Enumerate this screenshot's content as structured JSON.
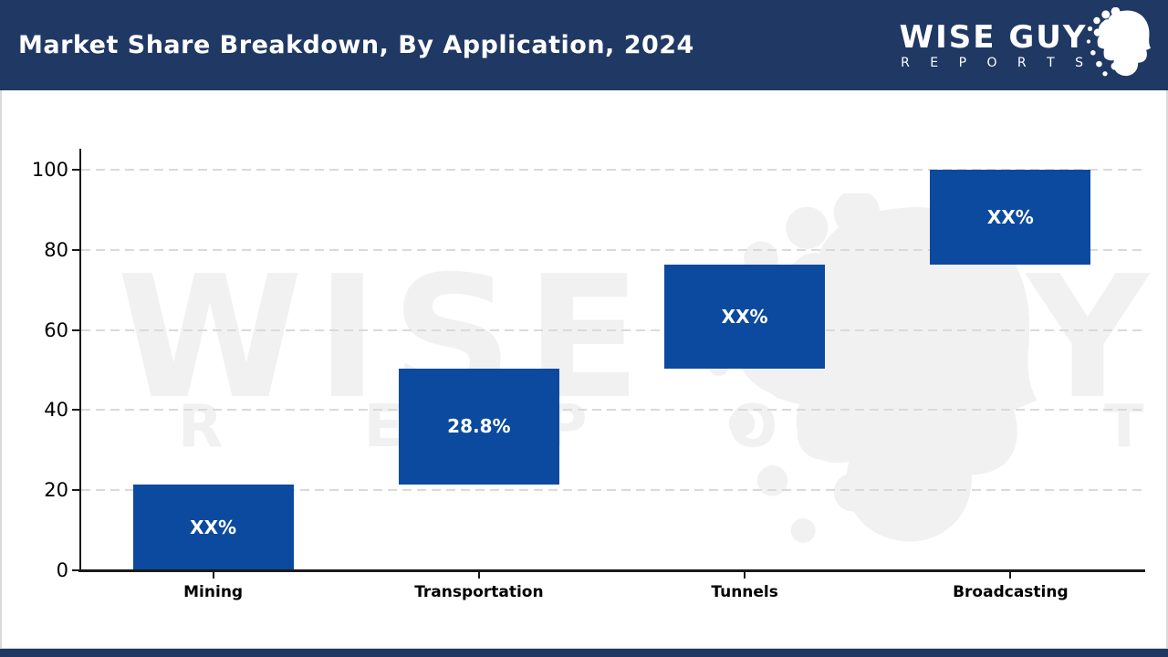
{
  "header": {
    "title": "Market Share Breakdown, By Application, 2024",
    "brand": {
      "line1": "WISE GUY",
      "line2": "R E P O R T S"
    },
    "bg_color": "#203864"
  },
  "watermark": {
    "line1": "WISE GUY",
    "line2": "R E P O R T S"
  },
  "chart_data": {
    "type": "bar",
    "subtype": "waterfall-floating-bars",
    "title": "Market Share Breakdown, By Application, 2024",
    "categories": [
      "Mining",
      "Transportation",
      "Tunnels",
      "Broadcasting"
    ],
    "series": [
      {
        "name": "Market Share",
        "ranges": [
          [
            0,
            21.5
          ],
          [
            21.5,
            50.3
          ],
          [
            50.3,
            76.3
          ],
          [
            76.3,
            100
          ]
        ],
        "segment_heights": [
          21.5,
          28.8,
          26.0,
          23.7
        ]
      }
    ],
    "bar_labels": [
      "XX%",
      "28.8%",
      "XX%",
      "XX%"
    ],
    "bar_color": "#0b4a9e",
    "label_color": "#ffffff",
    "xlabel": "",
    "ylabel": "",
    "ylim": [
      0,
      105
    ],
    "yticks": [
      0,
      20,
      40,
      60,
      80,
      100
    ],
    "grid": "horizontal-dashed",
    "legend": "none"
  },
  "footer": {
    "bg_color": "#203864"
  }
}
